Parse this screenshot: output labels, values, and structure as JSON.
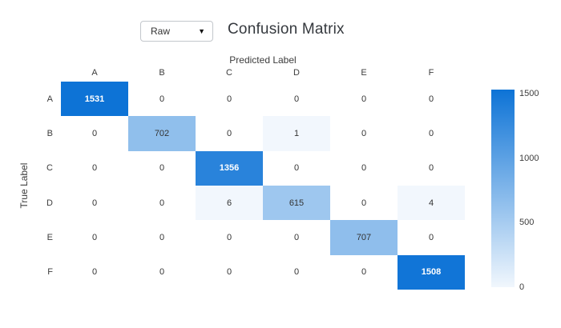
{
  "title": "Confusion Matrix",
  "controls": {
    "dropdown_value": "Raw",
    "dropdown_arrow_glyph": "▼"
  },
  "chart_data": {
    "type": "heatmap",
    "title": "Confusion Matrix",
    "xlabel": "Predicted Label",
    "ylabel": "True Label",
    "categories": [
      "A",
      "B",
      "C",
      "D",
      "E",
      "F"
    ],
    "rows": [
      [
        1531,
        0,
        0,
        0,
        0,
        0
      ],
      [
        0,
        702,
        0,
        1,
        0,
        0
      ],
      [
        0,
        0,
        1356,
        0,
        0,
        0
      ],
      [
        0,
        0,
        6,
        615,
        0,
        4
      ],
      [
        0,
        0,
        0,
        0,
        707,
        0
      ],
      [
        0,
        0,
        0,
        0,
        0,
        1508
      ]
    ],
    "colorbar": {
      "ticks": [
        1500,
        1000,
        500,
        0
      ],
      "domain_max": 1531,
      "min_color": "#ffffff",
      "max_color": "#0d73d6"
    },
    "layout": {
      "grid": true,
      "legend_position": "right"
    }
  }
}
